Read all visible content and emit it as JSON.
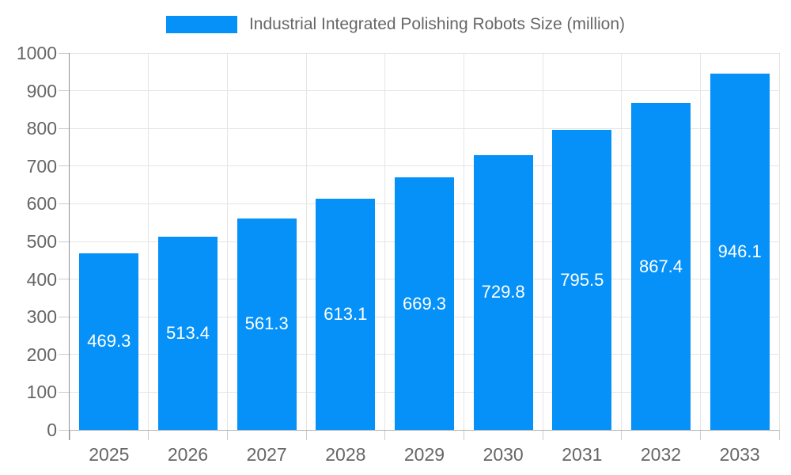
{
  "legend": {
    "label": "Industrial Integrated Polishing Robots Size (million)",
    "position": "top-center"
  },
  "chart_data": {
    "type": "bar",
    "title": "Industrial Integrated Polishing Robots Size (million)",
    "categories": [
      "2025",
      "2026",
      "2027",
      "2028",
      "2029",
      "2030",
      "2031",
      "2032",
      "2033"
    ],
    "values": [
      469.3,
      513.4,
      561.3,
      613.1,
      669.3,
      729.8,
      795.5,
      867.4,
      946.1
    ],
    "value_labels": [
      "469.3",
      "513.4",
      "561.3",
      "613.1",
      "669.3",
      "729.8",
      "795.5",
      "867.4",
      "946.1"
    ],
    "xlabel": "",
    "ylabel": "",
    "ylim": [
      0,
      1000
    ],
    "ytick_step": 100,
    "ytick_labels": [
      "0",
      "100",
      "200",
      "300",
      "400",
      "500",
      "600",
      "700",
      "800",
      "900",
      "1000"
    ],
    "grid": true,
    "legend_position": "top-center"
  },
  "colors": {
    "bar": "#0591f8",
    "value_label_text": "#ffffff",
    "gridline": "#e5e5e5",
    "tick": "#cccccc",
    "axis_y": "#8f8f8f",
    "axis_x": "#b2b2b2",
    "tick_label_text": "#666666",
    "legend_text": "#666666",
    "background": "#ffffff"
  }
}
